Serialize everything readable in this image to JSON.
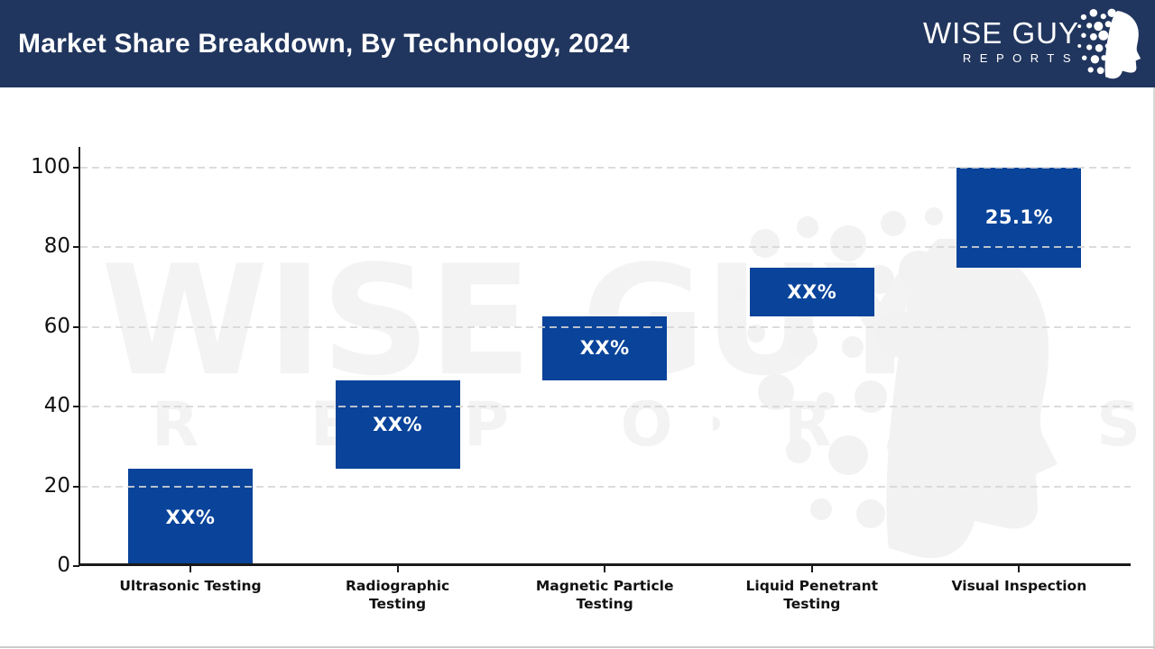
{
  "header": {
    "title": "Market Share Breakdown, By Technology, 2024",
    "logo_line1": "WISE GUY",
    "logo_line2": "REPORTS"
  },
  "watermark": {
    "line1": "WISE GUY",
    "line2": "R E P O R T S"
  },
  "chart_data": {
    "type": "bar",
    "subtype": "waterfall",
    "title": "Market Share Breakdown, By Technology, 2024",
    "xlabel": "",
    "ylabel": "",
    "ylim": [
      0,
      100
    ],
    "yticks": [
      0,
      20,
      40,
      60,
      80,
      100
    ],
    "grid": "horizontal-dashed",
    "legend": "none",
    "categories": [
      "Ultrasonic Testing",
      "Radiographic Testing",
      "Magnetic Particle Testing",
      "Liquid Penetrant Testing",
      "Visual Inspection"
    ],
    "categories_wrapped": [
      [
        "Ultrasonic Testing"
      ],
      [
        "Radiographic",
        "Testing"
      ],
      [
        "Magnetic Particle",
        "Testing"
      ],
      [
        "Liquid Penetrant",
        "Testing"
      ],
      [
        "Visual Inspection"
      ]
    ],
    "segments": [
      {
        "category": "Ultrasonic Testing",
        "start": 0,
        "end": 24.5,
        "value": 24.5,
        "label": "XX%"
      },
      {
        "category": "Radiographic Testing",
        "start": 24.5,
        "end": 46.5,
        "value": 22.0,
        "label": "XX%"
      },
      {
        "category": "Magnetic Particle Testing",
        "start": 46.5,
        "end": 62.7,
        "value": 16.2,
        "label": "XX%"
      },
      {
        "category": "Liquid Penetrant Testing",
        "start": 62.7,
        "end": 74.9,
        "value": 12.2,
        "label": "XX%"
      },
      {
        "category": "Visual Inspection",
        "start": 74.9,
        "end": 100.0,
        "value": 25.1,
        "label": "25.1%"
      }
    ],
    "bar_color": "#09439a"
  },
  "colors": {
    "header_bg": "#21365e",
    "bar": "#09439a",
    "grid": "#d6d6d6",
    "axis": "#1a1a1a",
    "watermark": "#f3f3f3",
    "bottom_line": "#cbcbcb"
  }
}
